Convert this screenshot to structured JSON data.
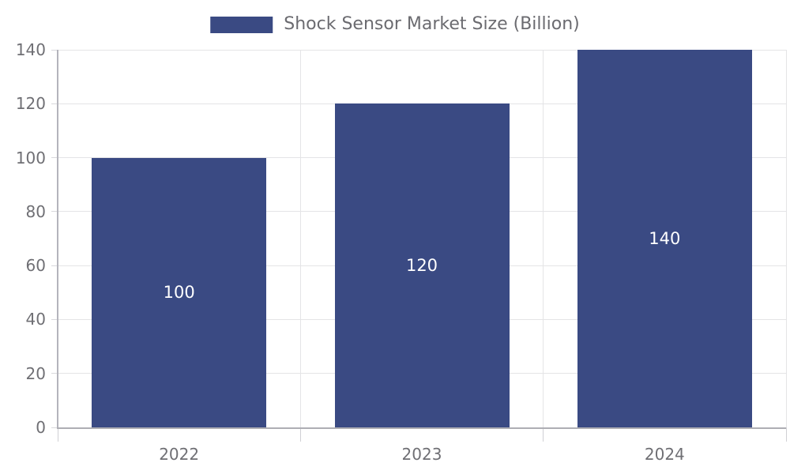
{
  "chart_data": {
    "type": "bar",
    "title": "",
    "xlabel": "",
    "ylabel": "",
    "categories": [
      "2022",
      "2023",
      "2024"
    ],
    "series": [
      {
        "name": "Shock Sensor Market Size (Billion)",
        "values": [
          100,
          120,
          140
        ]
      }
    ],
    "bar_value_labels": [
      "100",
      "120",
      "140"
    ],
    "yticks": [
      0,
      20,
      40,
      60,
      80,
      100,
      120,
      140
    ],
    "ylim": [
      0,
      140
    ],
    "grid": true,
    "legend_position": "top-center",
    "colors": {
      "bar": "#3A4A83",
      "gridline": "#e4e4e6",
      "axis_line": "#aeaeb4",
      "tick_label": "#6f6f74",
      "legend_label": "#6b6b70",
      "bar_label": "#ffffff",
      "background": "#ffffff"
    }
  }
}
